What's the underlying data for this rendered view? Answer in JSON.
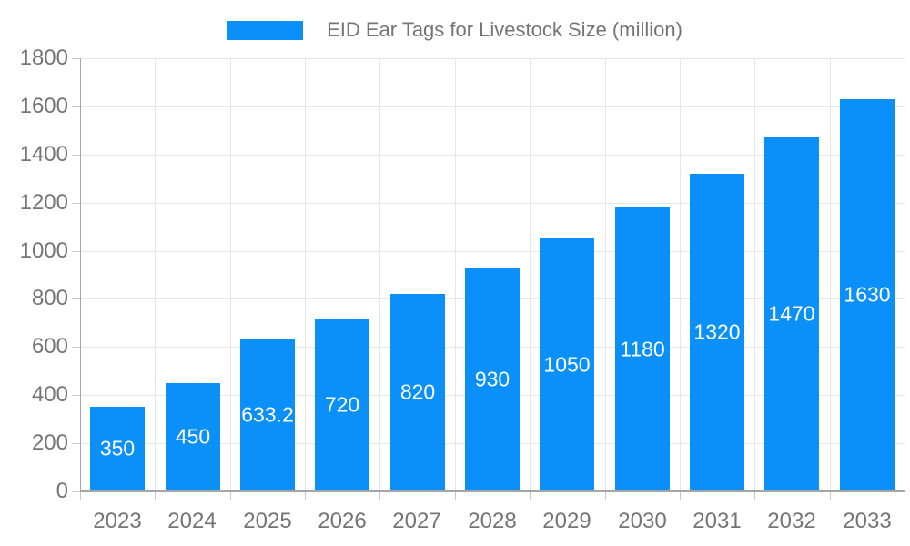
{
  "legend": {
    "items": [
      {
        "label": "EID Ear Tags for Livestock Size (million)"
      }
    ]
  },
  "colors": {
    "bar": "#0a90f8",
    "bar_label": "#ffffff",
    "grid": "#e6e6e6",
    "axis_line": "#a6a6a6",
    "tick": "#c9c9c9",
    "axis_text": "#757575",
    "background": "#ffffff"
  },
  "chart_data": {
    "type": "bar",
    "title": "EID Ear Tags for Livestock Size (million)",
    "categories": [
      "2023",
      "2024",
      "2025",
      "2026",
      "2027",
      "2028",
      "2029",
      "2030",
      "2031",
      "2032",
      "2033"
    ],
    "values": [
      350,
      450,
      633.2,
      720,
      820,
      930,
      1050,
      1180,
      1320,
      1470,
      1630
    ],
    "value_labels": [
      "350",
      "450",
      "633.2",
      "720",
      "820",
      "930",
      "1050",
      "1180",
      "1320",
      "1470",
      "1630"
    ],
    "xlabel": "",
    "ylabel": "",
    "ylim": [
      0,
      1800
    ],
    "ytick_step": 200,
    "ytick_labels": [
      "0",
      "200",
      "400",
      "600",
      "800",
      "1000",
      "1200",
      "1400",
      "1600",
      "1800"
    ],
    "grid": true,
    "legend_position": "top",
    "bar_label_position": "inside-center"
  }
}
